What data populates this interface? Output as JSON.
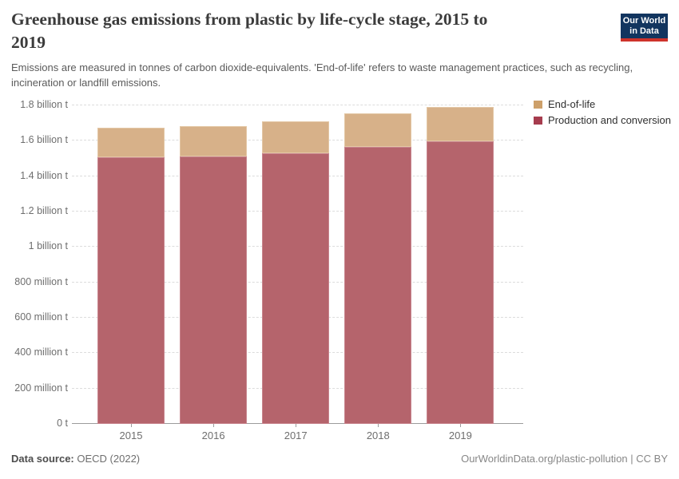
{
  "header": {
    "title_lines": [
      "Greenhouse gas emissions from plastic by life-cycle stage, 2015 to",
      "2019"
    ],
    "subtitle": "Emissions are measured in tonnes of carbon dioxide-equivalents. 'End-of-life' refers to waste management practices, such as recycling, incineration or landfill emissions.",
    "logo": {
      "line1": "Our World",
      "line2": "in Data",
      "bg_color": "#12355F",
      "accent_color": "#CE332B"
    }
  },
  "legend": [
    {
      "label": "End-of-life",
      "color": "#CDA06A"
    },
    {
      "label": "Production and conversion",
      "color": "#A63C4E"
    }
  ],
  "chart_data": {
    "type": "bar",
    "stacked": true,
    "title": "Greenhouse gas emissions from plastic by life-cycle stage, 2015 to 2019",
    "unit": "tonnes of carbon dioxide-equivalents",
    "categories": [
      "2015",
      "2016",
      "2017",
      "2018",
      "2019"
    ],
    "series": [
      {
        "name": "Production and conversion",
        "color": "#B5646C",
        "edge_color": "#C8858E",
        "values_billion_tonnes": [
          1.505,
          1.513,
          1.528,
          1.565,
          1.598
        ]
      },
      {
        "name": "End-of-life",
        "color": "#D7B189",
        "edge_color": "#E3C7A5",
        "values_billion_tonnes": [
          0.167,
          0.17,
          0.181,
          0.188,
          0.195
        ]
      }
    ],
    "totals_billion_tonnes": [
      1.672,
      1.683,
      1.709,
      1.753,
      1.793
    ],
    "ylim_billion_tonnes": [
      0,
      1.8
    ],
    "y_ticks": [
      {
        "value": 0,
        "label": "0 t"
      },
      {
        "value": 0.2,
        "label": "200 million t"
      },
      {
        "value": 0.4,
        "label": "400 million t"
      },
      {
        "value": 0.6,
        "label": "600 million t"
      },
      {
        "value": 0.8,
        "label": "800 million t"
      },
      {
        "value": 1.0,
        "label": "1 billion t"
      },
      {
        "value": 1.2,
        "label": "1.2 billion t"
      },
      {
        "value": 1.4,
        "label": "1.4 billion t"
      },
      {
        "value": 1.6,
        "label": "1.6 billion t"
      },
      {
        "value": 1.8,
        "label": "1.8 billion t"
      }
    ],
    "grid": "horizontal-dashed",
    "legend_position": "top-right"
  },
  "footer": {
    "source_label": "Data source:",
    "source_value": "OECD (2022)",
    "link": "OurWorldinData.org/plastic-pollution | CC BY"
  }
}
